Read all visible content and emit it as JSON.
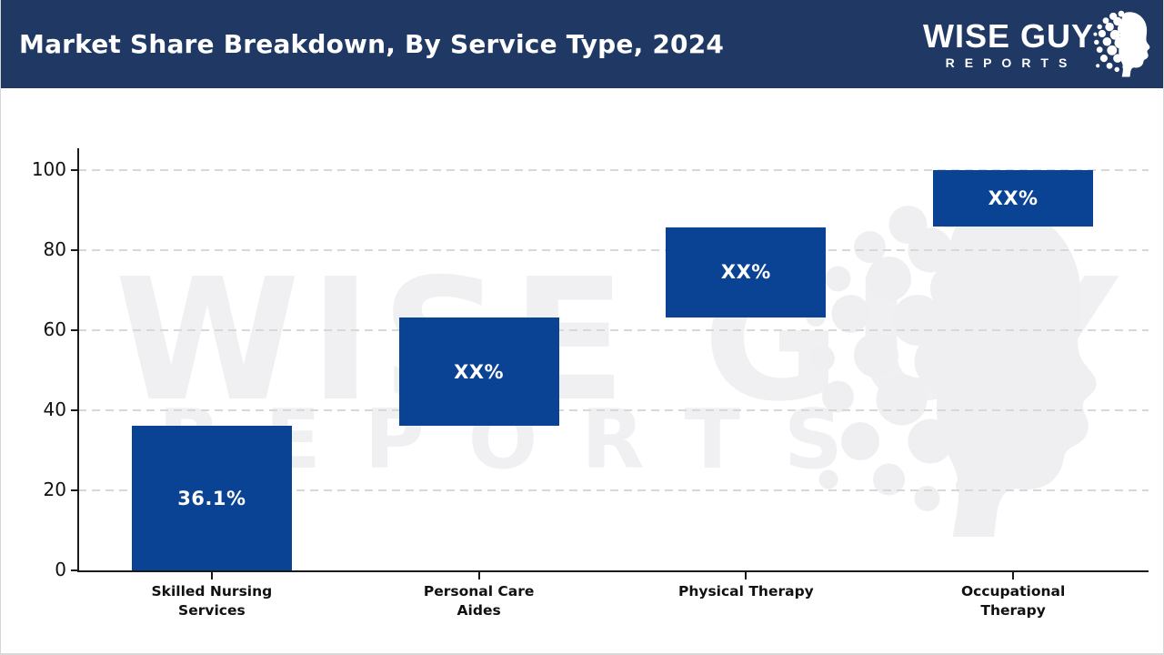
{
  "header": {
    "title": "Market Share Breakdown, By Service Type, 2024",
    "logo": {
      "wordmark": "WISE GUY",
      "tagline": "REPORTS"
    }
  },
  "watermark": {
    "wordmark": "WISE GUY",
    "tagline": "REPORTS"
  },
  "chart_data": {
    "type": "bar",
    "subtype": "waterfall",
    "title": "Market Share Breakdown, By Service Type, 2024",
    "categories": [
      "Skilled Nursing Services",
      "Personal Care Aides",
      "Physical Therapy",
      "Occupational Therapy"
    ],
    "x_tick_label_lines": [
      [
        "Skilled Nursing",
        "Services"
      ],
      [
        "Personal Care",
        "Aides"
      ],
      [
        "Physical Therapy"
      ],
      [
        "Occupational",
        "Therapy"
      ]
    ],
    "series": [
      {
        "name": "Market share (%)",
        "segments": [
          {
            "category": "Skilled Nursing Services",
            "base": 0,
            "top": 36.1,
            "label": "36.1%"
          },
          {
            "category": "Personal Care Aides",
            "base": 36.1,
            "top": 63.2,
            "label": "XX%"
          },
          {
            "category": "Physical Therapy",
            "base": 63.2,
            "top": 85.7,
            "label": "XX%"
          },
          {
            "category": "Occupational Therapy",
            "base": 85.9,
            "top": 100,
            "label": "XX%"
          }
        ]
      }
    ],
    "ylim": [
      0,
      100
    ],
    "yticks": [
      0,
      20,
      40,
      60,
      80,
      100
    ],
    "grid": {
      "horizontal": true,
      "style": "dashed"
    },
    "legend": "none",
    "bar_color": "#0a4294",
    "bar_label_color": "#ffffff"
  },
  "colors": {
    "header_bg": "#1f3864",
    "bar": "#0a4294",
    "grid_line": "#d8d8d8",
    "axis_line": "#1a1a1a",
    "tick_text": "#111111",
    "watermark": "#f0f0f3",
    "page_border": "#d6d6d6",
    "background": "#ffffff"
  }
}
